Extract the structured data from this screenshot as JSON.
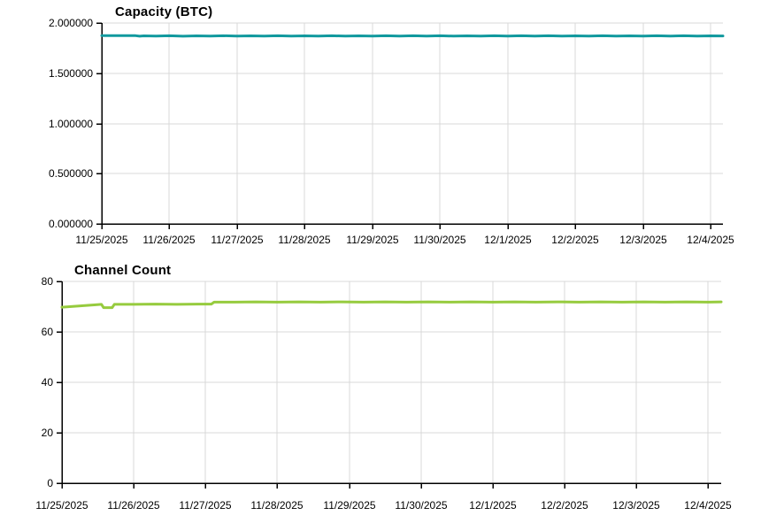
{
  "page": {
    "background_color": "#ffffff",
    "axis_color": "#000000",
    "gridline_color": "#d9d9d9",
    "text_color": "#000000"
  },
  "chart_data": [
    {
      "name": "capacity-chart",
      "type": "line",
      "title": "Capacity (BTC)",
      "line_color": "#11999e",
      "legend": "none",
      "grid": true,
      "x_tick_labels": [
        "11/25/2025",
        "11/26/2025",
        "11/27/2025",
        "11/28/2025",
        "11/29/2025",
        "11/30/2025",
        "12/1/2025",
        "12/2/2025",
        "12/3/2025",
        "12/4/2025"
      ],
      "x_range_days": [
        0,
        9.18
      ],
      "y_range": [
        0,
        2
      ],
      "y_tick_values": [
        0,
        0.5,
        1,
        1.5,
        2
      ],
      "y_tick_labels": [
        "0.000000",
        "0.500000",
        "1.000000",
        "1.500000",
        "2.000000"
      ],
      "approx_constant_value": 1.872,
      "points": [
        [
          0,
          1.8745
        ],
        [
          0.3,
          1.8745
        ],
        [
          0.5,
          1.874
        ],
        [
          0.56,
          1.869
        ],
        [
          0.62,
          1.8725
        ],
        [
          0.8,
          1.8695
        ],
        [
          1.0,
          1.873
        ],
        [
          1.2,
          1.869
        ],
        [
          1.4,
          1.8725
        ],
        [
          1.6,
          1.8695
        ],
        [
          1.8,
          1.873
        ],
        [
          2.0,
          1.8692
        ],
        [
          2.2,
          1.8726
        ],
        [
          2.4,
          1.8696
        ],
        [
          2.6,
          1.873
        ],
        [
          2.8,
          1.8694
        ],
        [
          3.0,
          1.8726
        ],
        [
          3.2,
          1.8698
        ],
        [
          3.4,
          1.873
        ],
        [
          3.6,
          1.8692
        ],
        [
          3.8,
          1.8726
        ],
        [
          4.0,
          1.8696
        ],
        [
          4.2,
          1.873
        ],
        [
          4.4,
          1.8694
        ],
        [
          4.6,
          1.8728
        ],
        [
          4.8,
          1.8698
        ],
        [
          5.0,
          1.873
        ],
        [
          5.2,
          1.8692
        ],
        [
          5.4,
          1.8726
        ],
        [
          5.6,
          1.8696
        ],
        [
          5.8,
          1.873
        ],
        [
          6.0,
          1.8694
        ],
        [
          6.2,
          1.8728
        ],
        [
          6.4,
          1.8696
        ],
        [
          6.6,
          1.873
        ],
        [
          6.8,
          1.8692
        ],
        [
          7.0,
          1.8726
        ],
        [
          7.2,
          1.8698
        ],
        [
          7.4,
          1.873
        ],
        [
          7.6,
          1.8694
        ],
        [
          7.8,
          1.8726
        ],
        [
          8.0,
          1.8696
        ],
        [
          8.2,
          1.873
        ],
        [
          8.4,
          1.8694
        ],
        [
          8.6,
          1.8728
        ],
        [
          8.8,
          1.8698
        ],
        [
          9.0,
          1.8726
        ],
        [
          9.18,
          1.8715
        ]
      ]
    },
    {
      "name": "channel-count-chart",
      "type": "line",
      "title": "Channel Count",
      "line_color": "#96cb3e",
      "legend": "none",
      "grid": true,
      "x_tick_labels": [
        "11/25/2025",
        "11/26/2025",
        "11/27/2025",
        "11/28/2025",
        "11/29/2025",
        "11/30/2025",
        "12/1/2025",
        "12/2/2025",
        "12/3/2025",
        "12/4/2025"
      ],
      "x_range_days": [
        0,
        9.18
      ],
      "y_range": [
        0,
        80
      ],
      "y_tick_values": [
        0,
        20,
        40,
        60,
        80
      ],
      "y_tick_labels": [
        "0",
        "20",
        "40",
        "60",
        "80"
      ],
      "points": [
        [
          0,
          69.8
        ],
        [
          0.15,
          70.1
        ],
        [
          0.3,
          70.4
        ],
        [
          0.45,
          70.7
        ],
        [
          0.55,
          70.9
        ],
        [
          0.58,
          69.6
        ],
        [
          0.7,
          69.6
        ],
        [
          0.73,
          70.9
        ],
        [
          1.0,
          70.9
        ],
        [
          1.3,
          71.0
        ],
        [
          1.6,
          70.9
        ],
        [
          1.9,
          71.0
        ],
        [
          2.08,
          71.0
        ],
        [
          2.12,
          71.8
        ],
        [
          2.4,
          71.8
        ],
        [
          2.7,
          71.9
        ],
        [
          3.0,
          71.8
        ],
        [
          3.3,
          71.9
        ],
        [
          3.6,
          71.8
        ],
        [
          3.9,
          71.9
        ],
        [
          4.2,
          71.8
        ],
        [
          4.5,
          71.9
        ],
        [
          4.8,
          71.8
        ],
        [
          5.1,
          71.9
        ],
        [
          5.4,
          71.8
        ],
        [
          5.7,
          71.9
        ],
        [
          6.0,
          71.8
        ],
        [
          6.3,
          71.9
        ],
        [
          6.6,
          71.8
        ],
        [
          6.9,
          71.9
        ],
        [
          7.2,
          71.8
        ],
        [
          7.5,
          71.9
        ],
        [
          7.8,
          71.8
        ],
        [
          8.1,
          71.9
        ],
        [
          8.4,
          71.8
        ],
        [
          8.7,
          71.9
        ],
        [
          9.0,
          71.8
        ],
        [
          9.18,
          71.9
        ]
      ]
    }
  ]
}
